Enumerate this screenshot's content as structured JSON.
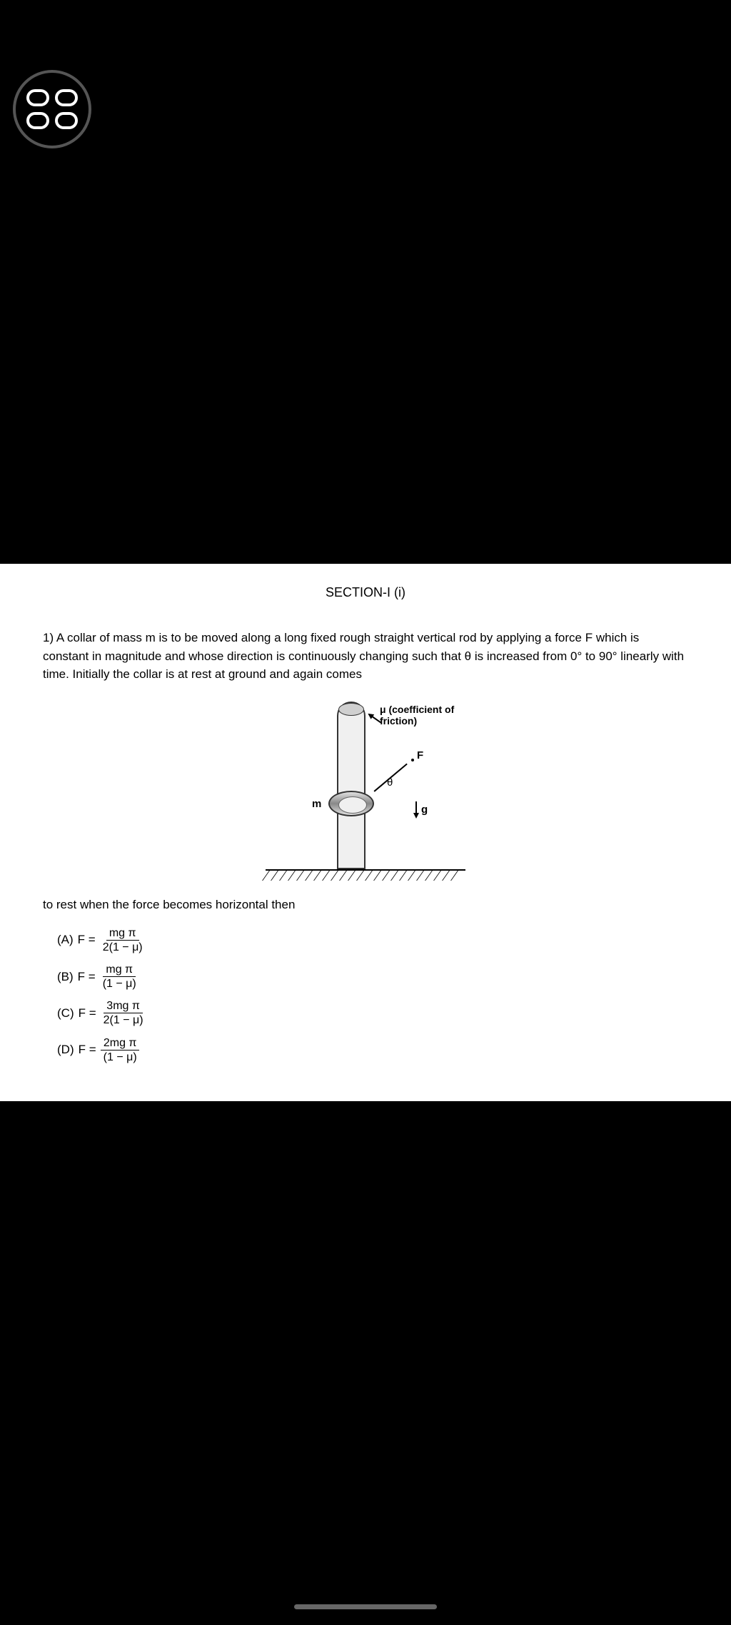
{
  "section_title": "SECTION-I (i)",
  "question_number": "1)",
  "question_text_part1": "1) A collar of mass m is to be moved along a long fixed rough straight vertical rod by applying a force F which is constant in magnitude and whose direction is continuously changing such that θ is increased from 0° to 90° linearly with time. Initially the collar is at rest at ground and again comes",
  "question_text_part2": "to rest when the force becomes horizontal then",
  "diagram": {
    "mu_label": "μ (coefficient of friction)",
    "f_label": "F",
    "theta_label": "θ",
    "m_label": "m",
    "g_label": "g"
  },
  "options": {
    "a": {
      "label": "(A)",
      "prefix": "F =",
      "numerator": "mg π",
      "denominator": "2(1 − μ)"
    },
    "b": {
      "label": "(B)",
      "prefix": "F =",
      "numerator": "mg π",
      "denominator": "(1 − μ)"
    },
    "c": {
      "label": "(C)",
      "prefix": "F =",
      "numerator": "3mg π",
      "denominator": "2(1 − μ)"
    },
    "d": {
      "label": "(D)",
      "prefix": "F =",
      "numerator": "2mg π",
      "denominator": "(1 − μ)"
    }
  }
}
